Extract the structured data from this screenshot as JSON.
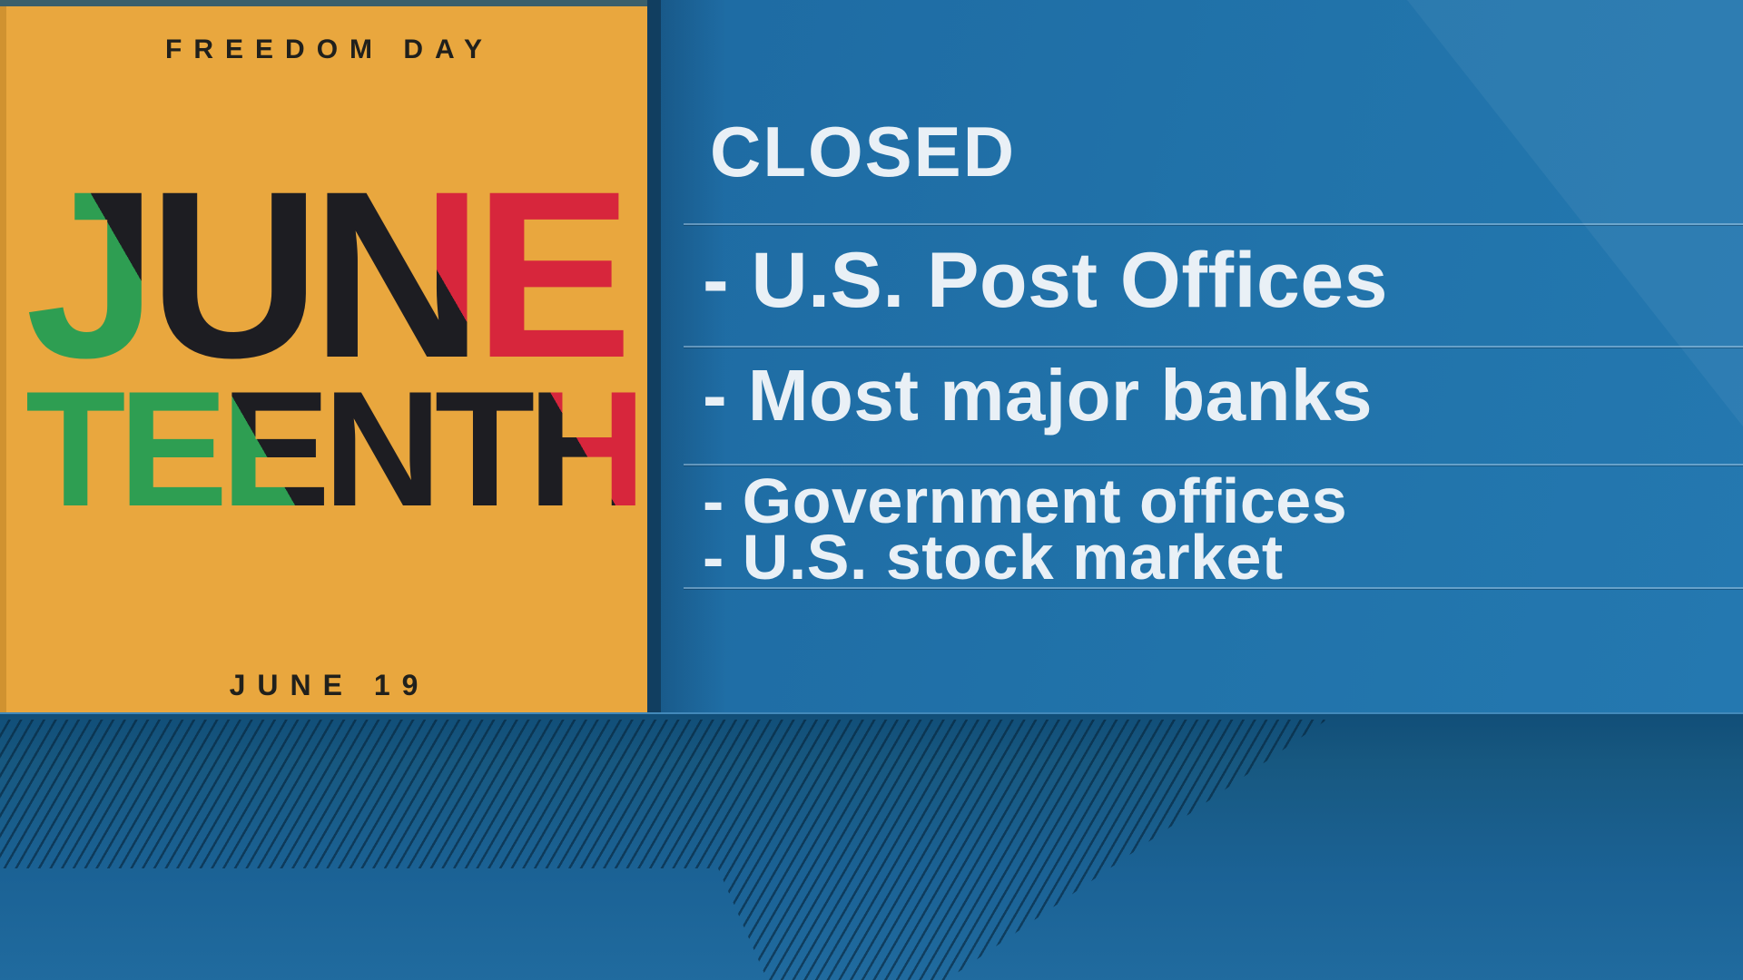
{
  "card": {
    "kicker": "FREEDOM DAY",
    "title_top": "JUNE",
    "title_bottom": "TEENTH",
    "date_label": "JUNE 19",
    "colors": {
      "background": "#E9A73E",
      "green": "#2E9E52",
      "black": "#1D1D22",
      "red": "#D7263C",
      "ink": "#20201C"
    }
  },
  "panel": {
    "heading": "CLOSED",
    "items": [
      "- U.S. Post Offices",
      "- Most major banks",
      "- Government offices",
      "- U.S. stock market"
    ],
    "colors": {
      "background": "#1D6AA2",
      "text": "#E9F0F6",
      "separator": "#7FA8C6",
      "hatch_line": "#06243A"
    }
  }
}
